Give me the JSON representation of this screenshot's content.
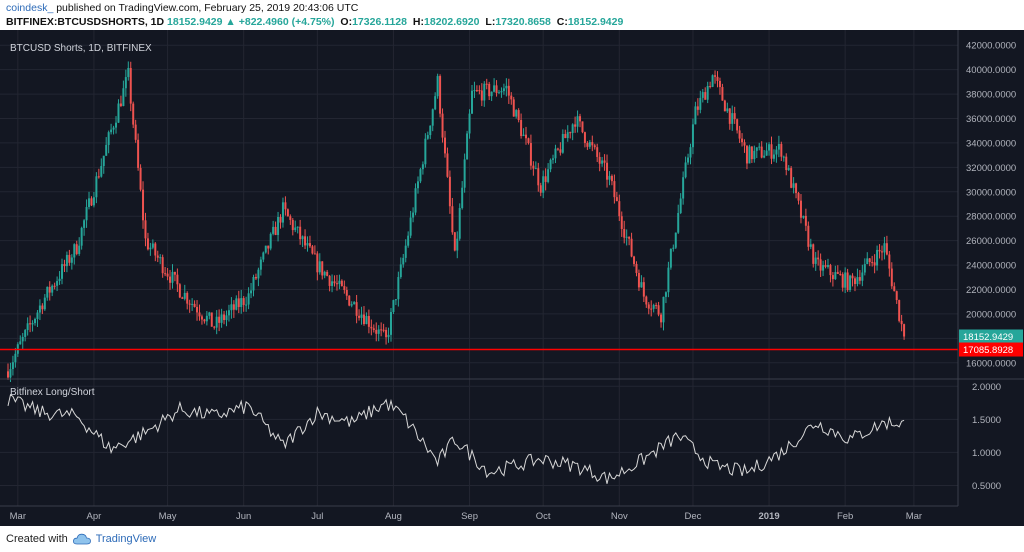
{
  "header": {
    "user": "coindesk_",
    "published": "published on TradingView.com, February 25, 2019 20:43:06 UTC",
    "symbol": "BITFINEX:BTCUSDSHORTS, 1D",
    "last": "18152.9429",
    "change": "+822.4960 (+4.75%)",
    "o_label": "O:",
    "o_value": "17326.1128",
    "h_label": "H:",
    "h_value": "18202.6920",
    "l_label": "L:",
    "l_value": "17320.8658",
    "c_label": "C:",
    "c_value": "18152.9429"
  },
  "footer": {
    "created_with": "Created with",
    "brand": "TradingView"
  },
  "colors": {
    "background": "#131722",
    "up": "#26a69a",
    "down": "#ef5350",
    "hline": "#ff0000",
    "grid": "#232632",
    "line": "#d8d8d8",
    "axis_text": "#b2b5be"
  },
  "chart_data": [
    {
      "type": "candlestick",
      "title": "BTCUSD Shorts, 1D, BITFINEX",
      "xlabel": "",
      "ylabel": "",
      "x_ticks": [
        "Mar",
        "Apr",
        "May",
        "Jun",
        "Jul",
        "Aug",
        "Sep",
        "Oct",
        "Nov",
        "Dec",
        "2019",
        "Feb",
        "Mar"
      ],
      "y_ticks": [
        "16000.0000",
        "18000.0000",
        "20000.0000",
        "22000.0000",
        "24000.0000",
        "26000.0000",
        "28000.0000",
        "30000.0000",
        "32000.0000",
        "34000.0000",
        "36000.0000",
        "38000.0000",
        "40000.0000",
        "42000.0000"
      ],
      "ylim": [
        15000,
        43000
      ],
      "grid": true,
      "last_price_label": "18152.9429",
      "horizontal_line": {
        "value": 17085.8928,
        "label": "17085.8928"
      },
      "series": [
        {
          "x": [
            "2018-02-25",
            "2018-03-11",
            "2018-03-25",
            "2018-04-08",
            "2018-04-15",
            "2018-04-22",
            "2018-05-06",
            "2018-05-20",
            "2018-06-03",
            "2018-06-17",
            "2018-07-01",
            "2018-07-15",
            "2018-07-29",
            "2018-08-05",
            "2018-08-19",
            "2018-08-26",
            "2018-09-02",
            "2018-09-16",
            "2018-09-30",
            "2018-10-14",
            "2018-10-28",
            "2018-11-11",
            "2018-11-18",
            "2018-12-02",
            "2018-12-09",
            "2018-12-23",
            "2019-01-06",
            "2019-01-20",
            "2019-02-03",
            "2019-02-17",
            "2019-02-25"
          ],
          "close": [
            15500,
            21000,
            25500,
            35000,
            39500,
            26000,
            22000,
            19000,
            21500,
            28500,
            24000,
            21000,
            17800,
            24500,
            39000,
            24500,
            38000,
            38500,
            30500,
            36000,
            31000,
            21500,
            20000,
            36500,
            39500,
            33000,
            33500,
            24000,
            22500,
            25500,
            18153
          ]
        }
      ]
    },
    {
      "type": "line",
      "title": "Bitfinex Long/Short",
      "xlabel": "",
      "ylabel": "",
      "y_ticks": [
        "0.5000",
        "1.0000",
        "1.5000",
        "2.0000"
      ],
      "ylim": [
        0.25,
        2.05
      ],
      "grid": true,
      "series": [
        {
          "x": [
            "2018-02-25",
            "2018-03-11",
            "2018-03-25",
            "2018-04-08",
            "2018-04-22",
            "2018-05-06",
            "2018-05-20",
            "2018-06-03",
            "2018-06-17",
            "2018-07-01",
            "2018-07-15",
            "2018-07-29",
            "2018-08-05",
            "2018-08-19",
            "2018-08-26",
            "2018-09-09",
            "2018-09-30",
            "2018-10-14",
            "2018-10-28",
            "2018-11-11",
            "2018-11-25",
            "2018-12-09",
            "2018-12-23",
            "2019-01-06",
            "2019-01-20",
            "2019-02-03",
            "2019-02-17",
            "2019-02-25"
          ],
          "y": [
            1.8,
            1.6,
            1.55,
            1.05,
            1.3,
            1.65,
            1.55,
            1.7,
            1.1,
            1.6,
            1.45,
            1.75,
            1.55,
            0.85,
            1.2,
            0.7,
            0.9,
            0.8,
            0.6,
            0.9,
            1.25,
            0.8,
            0.7,
            1.0,
            1.45,
            1.2,
            1.45,
            1.45
          ]
        }
      ]
    }
  ]
}
